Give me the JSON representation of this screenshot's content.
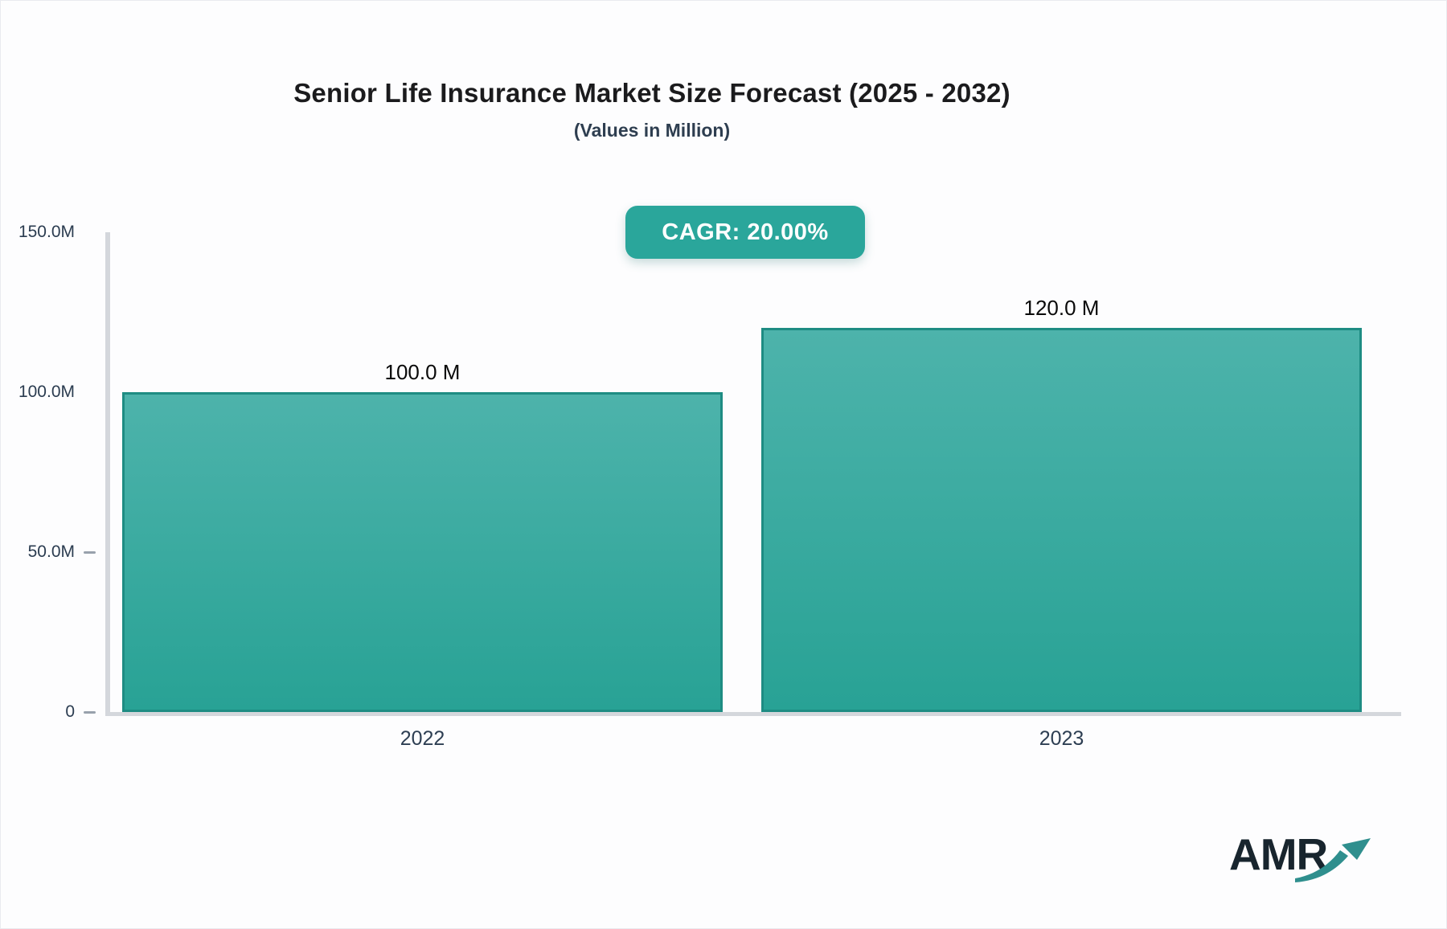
{
  "header": {
    "title": "Senior Life Insurance Market Size Forecast (2025 - 2032)",
    "subtitle": "(Values in Million)",
    "cagr_annotation": "CAGR: 20.00%"
  },
  "chart_data": {
    "type": "bar",
    "title": "Senior Life Insurance Market Size Forecast (2025 - 2032)",
    "subtitle": "(Values in Million)",
    "annotation": "CAGR: 20.00%",
    "categories": [
      "2022",
      "2023"
    ],
    "values": [
      100.0,
      120.0
    ],
    "bar_labels": [
      "100.0 M",
      "120.0 M"
    ],
    "unit": "Million",
    "xlabel": "",
    "ylabel": "",
    "ylim": [
      0,
      150
    ],
    "grid": false,
    "legend": false,
    "y_ticks": [
      {
        "label": "150.0M",
        "value": 150,
        "dash": false
      },
      {
        "label": "100.0M",
        "value": 100,
        "dash": false
      },
      {
        "label": "50.0M",
        "value": 50,
        "dash": true
      },
      {
        "label": "0",
        "value": 0,
        "dash": true
      }
    ]
  },
  "colors": {
    "bar_gradient_top": "#4db3ab",
    "bar_gradient_bottom": "#28a295",
    "bar_border": "#1e8c83",
    "badge_bg": "#2aa69b",
    "badge_text": "#ffffff",
    "axis_line": "#d4d7dc",
    "logo_arrow": "#2f8f8e"
  },
  "logo": {
    "text": "AMR",
    "icon": "trend-up-arrow-icon"
  }
}
